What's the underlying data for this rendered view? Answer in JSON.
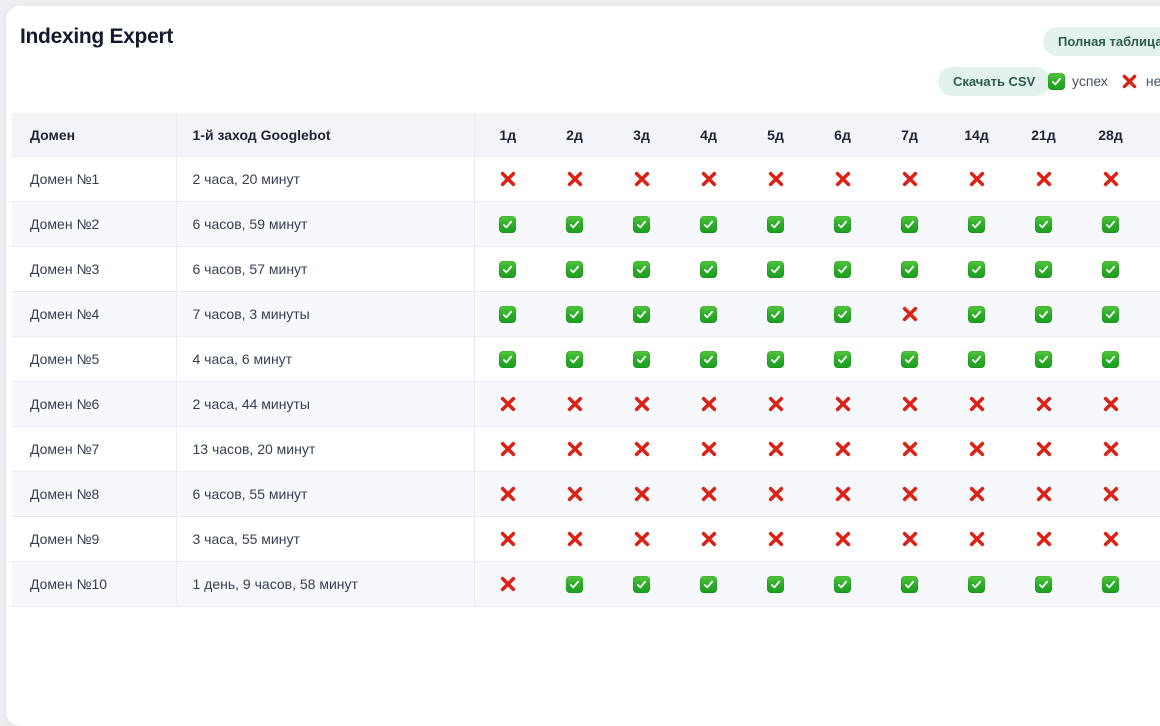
{
  "page": {
    "title": "Indexing Expert",
    "full_table_button": "Полная таблица",
    "download_csv_button": "Скачать CSV",
    "legend": {
      "success_label": "успех",
      "fail_label": "неудача"
    }
  },
  "table": {
    "columns": {
      "domain": "Домен",
      "first_visit": "1-й заход Googlebot",
      "days": [
        "1д",
        "2д",
        "3д",
        "4д",
        "5д",
        "6д",
        "7д",
        "14д",
        "21д",
        "28д"
      ]
    },
    "rows": [
      {
        "domain": "Домен №1",
        "first_visit": "2 часа, 20 минут",
        "results": [
          "fail",
          "fail",
          "fail",
          "fail",
          "fail",
          "fail",
          "fail",
          "fail",
          "fail",
          "fail"
        ]
      },
      {
        "domain": "Домен №2",
        "first_visit": "6 часов, 59 минут",
        "results": [
          "ok",
          "ok",
          "ok",
          "ok",
          "ok",
          "ok",
          "ok",
          "ok",
          "ok",
          "ok"
        ]
      },
      {
        "domain": "Домен №3",
        "first_visit": "6 часов, 57 минут",
        "results": [
          "ok",
          "ok",
          "ok",
          "ok",
          "ok",
          "ok",
          "ok",
          "ok",
          "ok",
          "ok"
        ]
      },
      {
        "domain": "Домен №4",
        "first_visit": "7 часов, 3 минуты",
        "results": [
          "ok",
          "ok",
          "ok",
          "ok",
          "ok",
          "ok",
          "fail",
          "ok",
          "ok",
          "ok"
        ]
      },
      {
        "domain": "Домен №5",
        "first_visit": "4 часа, 6 минут",
        "results": [
          "ok",
          "ok",
          "ok",
          "ok",
          "ok",
          "ok",
          "ok",
          "ok",
          "ok",
          "ok"
        ]
      },
      {
        "domain": "Домен №6",
        "first_visit": "2 часа, 44 минуты",
        "results": [
          "fail",
          "fail",
          "fail",
          "fail",
          "fail",
          "fail",
          "fail",
          "fail",
          "fail",
          "fail"
        ]
      },
      {
        "domain": "Домен №7",
        "first_visit": "13 часов, 20 минут",
        "results": [
          "fail",
          "fail",
          "fail",
          "fail",
          "fail",
          "fail",
          "fail",
          "fail",
          "fail",
          "fail"
        ]
      },
      {
        "domain": "Домен №8",
        "first_visit": "6 часов, 55 минут",
        "results": [
          "fail",
          "fail",
          "fail",
          "fail",
          "fail",
          "fail",
          "fail",
          "fail",
          "fail",
          "fail"
        ]
      },
      {
        "domain": "Домен №9",
        "first_visit": "3 часа, 55 минут",
        "results": [
          "fail",
          "fail",
          "fail",
          "fail",
          "fail",
          "fail",
          "fail",
          "fail",
          "fail",
          "fail"
        ]
      },
      {
        "domain": "Домен №10",
        "first_visit": "1 день, 9 часов, 58 минут",
        "results": [
          "fail",
          "ok",
          "ok",
          "ok",
          "ok",
          "ok",
          "ok",
          "ok",
          "ok",
          "ok"
        ]
      }
    ]
  },
  "colors": {
    "success_green": "#2aa928",
    "fail_red": "#dc2114",
    "accent_pill_bg": "#e3f2ec",
    "accent_pill_text": "#2b5b52"
  }
}
